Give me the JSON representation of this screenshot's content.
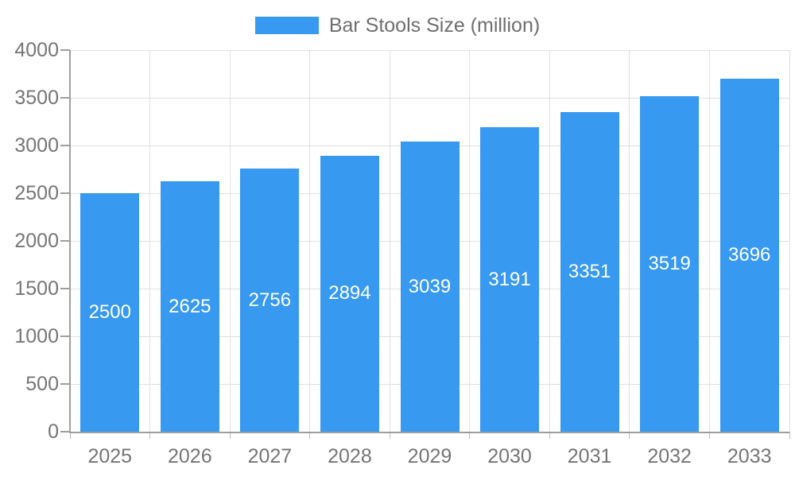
{
  "chart_data": {
    "type": "bar",
    "title": "Bar Stools Size (million)",
    "categories": [
      "2025",
      "2026",
      "2027",
      "2028",
      "2029",
      "2030",
      "2031",
      "2032",
      "2033"
    ],
    "series": [
      {
        "name": "Bar Stools Size (million)",
        "values": [
          2500,
          2625,
          2756,
          2894,
          3039,
          3191,
          3351,
          3519,
          3696
        ],
        "color": "#3899F0"
      }
    ],
    "xlabel": "",
    "ylabel": "",
    "ylim": [
      0,
      4000
    ],
    "yticks": [
      0,
      500,
      1000,
      1500,
      2000,
      2500,
      3000,
      3500,
      4000
    ],
    "grid": true,
    "legend_position": "top",
    "value_labels": "inside-center",
    "colors": {
      "bar": "#3899F0",
      "value_label": "#FFFFFF",
      "tick_label": "#757575",
      "gridline": "#E0E0E0",
      "axis_line": "#9E9E9E",
      "background": "#FFFFFF"
    }
  }
}
